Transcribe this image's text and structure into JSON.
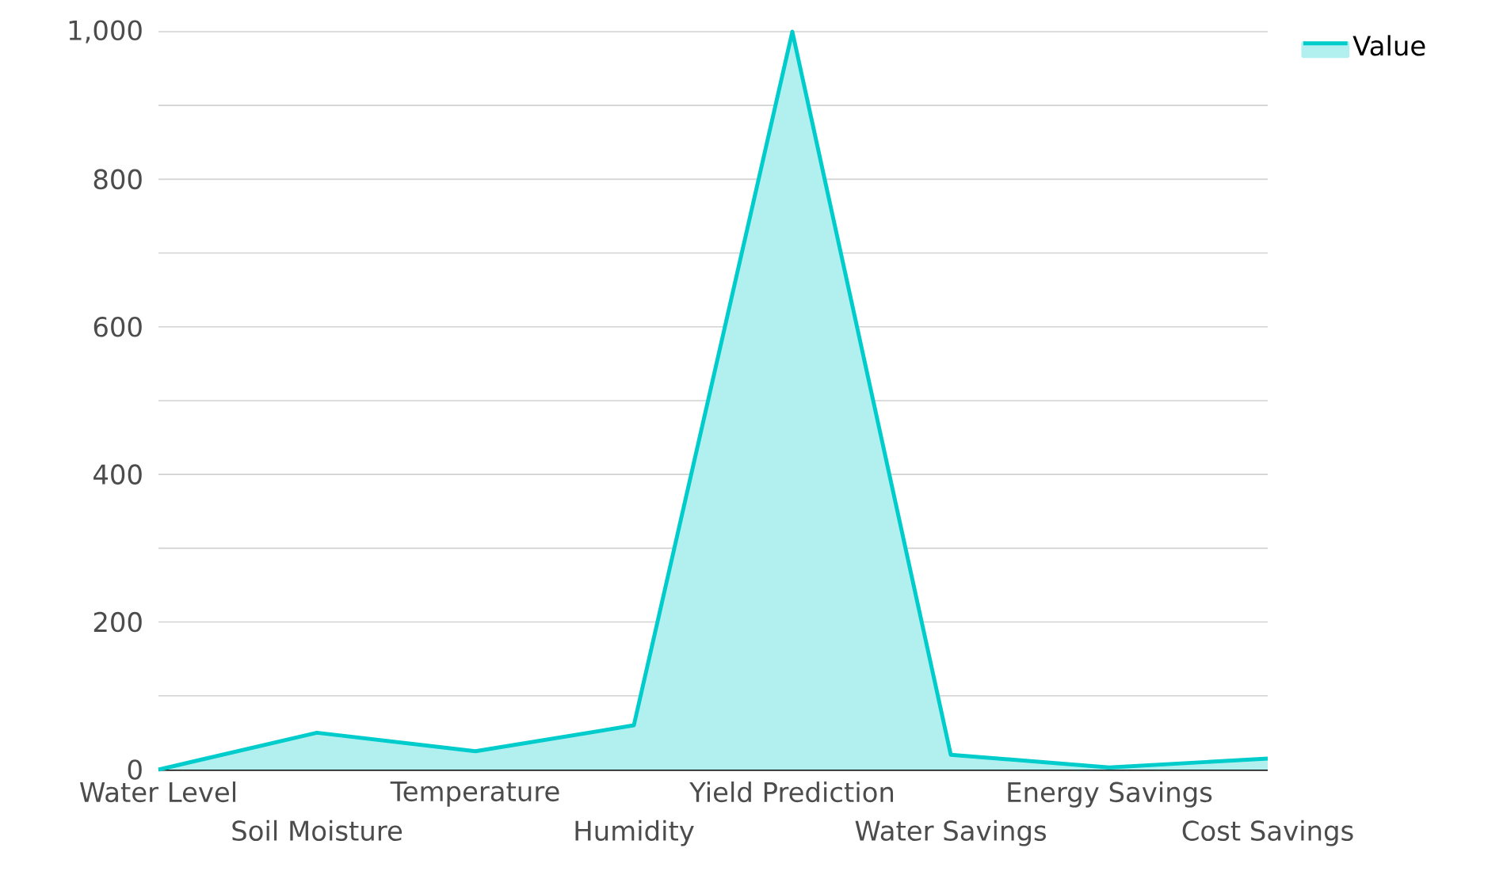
{
  "chart_data": {
    "type": "area",
    "categories": [
      "Water Level",
      "Soil Moisture",
      "Temperature",
      "Humidity",
      "Yield Prediction",
      "Water Savings",
      "Energy Savings",
      "Cost Savings"
    ],
    "series": [
      {
        "name": "Value",
        "color": "#00cccc",
        "values": [
          0,
          50,
          25,
          60,
          1000,
          20,
          3,
          15
        ]
      }
    ],
    "ylim": [
      0,
      1000
    ],
    "yticks": [
      0,
      {
        "value": 100,
        "label": null
      },
      200,
      {
        "value": 300,
        "label": null
      },
      400,
      {
        "value": 500,
        "label": null
      },
      600,
      {
        "value": 700,
        "label": null
      },
      800,
      {
        "value": 900,
        "label": null
      },
      {
        "value": 1000,
        "label": "1,000"
      }
    ],
    "grid": "y",
    "legend": "top right"
  }
}
